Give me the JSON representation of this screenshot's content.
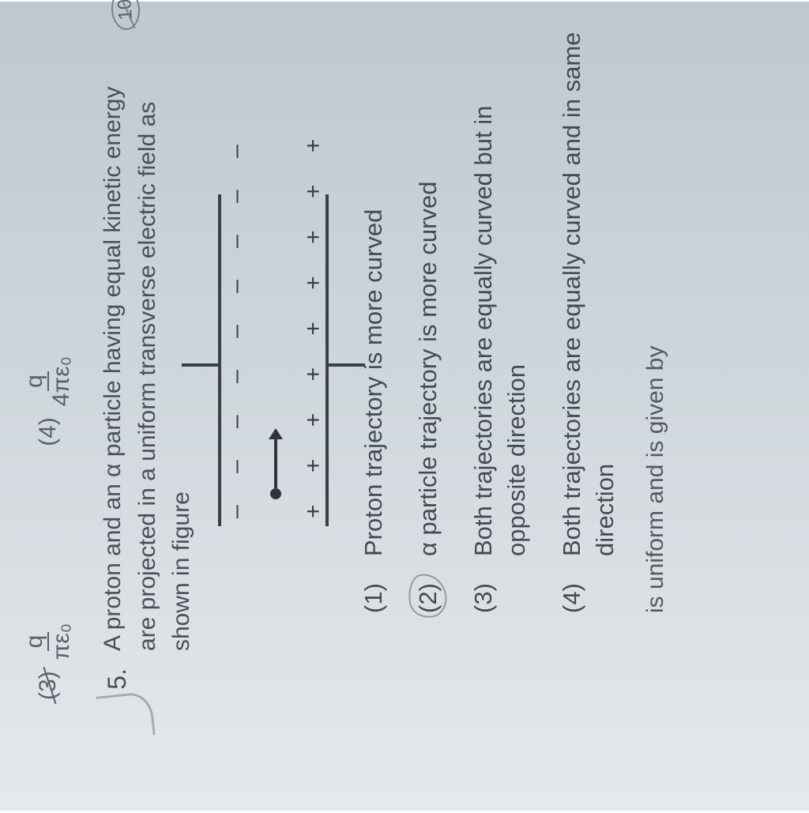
{
  "prev_options": {
    "opt3": {
      "num": "(3)",
      "numerator": "q",
      "denominator": "πε₀"
    },
    "opt4": {
      "num": "(4)",
      "numerator": "q",
      "denominator": "4πε₀"
    }
  },
  "question": {
    "number": "5.",
    "text": "A proton and an α particle having equal kinetic energy are projected in a uniform transverse electric field as shown in figure",
    "badge": "10"
  },
  "figure": {
    "top_marks": "– – – – – – – – –",
    "bot_marks": "+ + + + + + + + +"
  },
  "options": {
    "o1": {
      "n": "(1)",
      "t": "Proton trajectory is more curved"
    },
    "o2": {
      "n": "(2)",
      "t": "α particle trajectory is more curved"
    },
    "o3": {
      "n": "(3)",
      "t": "Both trajectories are equally curved but in opposite direction"
    },
    "o4": {
      "n": "(4)",
      "t": "Both trajectories are equally curved and in same direction"
    }
  },
  "trail": "is uniform and is given by",
  "colors": {
    "text": "#3a3f44",
    "muted": "#5a6168",
    "bg_left": "#e6e9ec",
    "bg_right": "#bfc8cf"
  },
  "typography": {
    "question_fontsize_pt": 22,
    "option_fontsize_pt": 23,
    "fraction_fontsize_pt": 22
  }
}
